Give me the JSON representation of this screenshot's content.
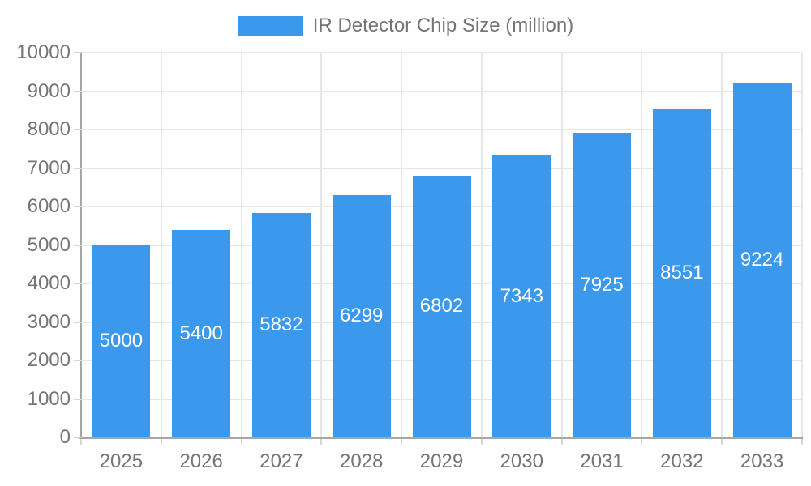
{
  "chart_data": {
    "type": "bar",
    "title": "IR Detector Chip Size (million)",
    "categories": [
      "2025",
      "2026",
      "2027",
      "2028",
      "2029",
      "2030",
      "2031",
      "2032",
      "2033"
    ],
    "values": [
      5000,
      5400,
      5832,
      6299,
      6802,
      7343,
      7925,
      8551,
      9224
    ],
    "xlabel": "",
    "ylabel": "",
    "ylim": [
      0,
      10000
    ],
    "ytick_step": 1000,
    "grid": true,
    "legend_position": "top-center",
    "value_labels": "inside-middle",
    "colors": {
      "bar": "#3a99ec",
      "bar_label": "#ffffff",
      "axis_text": "#757575",
      "legend_text": "#757575",
      "grid_line": "#e6e6e6",
      "axis_line": "#a6a6a6",
      "tick_mark": "#d6d6d6",
      "background": "#ffffff"
    }
  }
}
